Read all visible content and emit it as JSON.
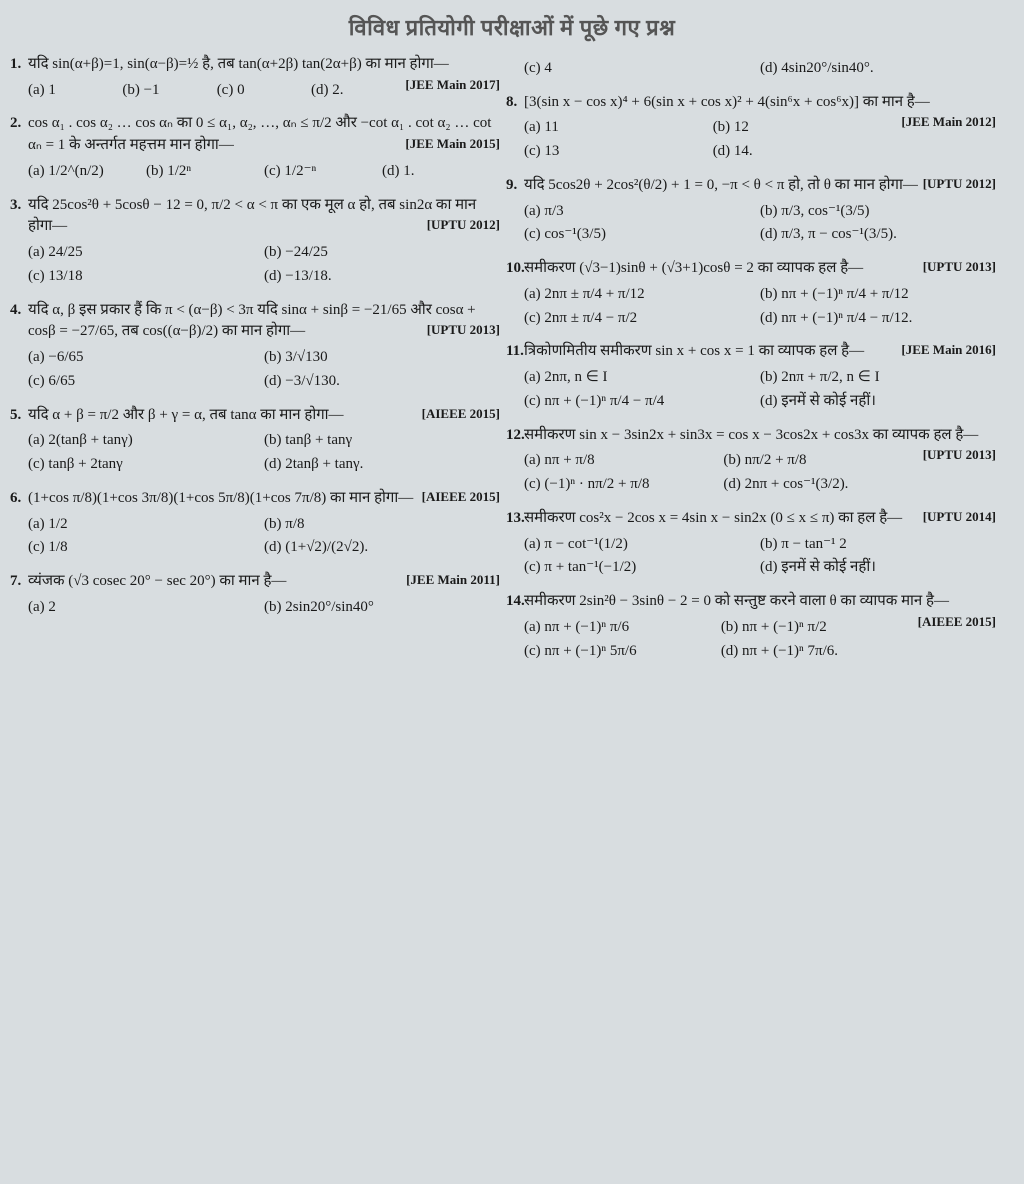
{
  "title": "विविध प्रतियोगी परीक्षाओं में पूछे गए प्रश्न",
  "left": {
    "q1": {
      "text": "यदि sin(α+β)=1, sin(α−β)=½ है, तब tan(α+2β) tan(2α+β) का मान होगा—",
      "tag": "[JEE Main 2017]",
      "a": "(a) 1",
      "b": "(b) −1",
      "c": "(c) 0",
      "d": "(d) 2."
    },
    "q2": {
      "text": "cos α₁ . cos α₂ … cos αₙ का 0 ≤ α₁, α₂, …, αₙ ≤ π/2 और −cot α₁ . cot α₂ … cot αₙ = 1 के अन्तर्गत महत्तम मान होगा—",
      "tag": "[JEE Main 2015]",
      "a": "(a) 1/2^(n/2)",
      "b": "(b) 1/2ⁿ",
      "c": "(c) 1/2⁻ⁿ",
      "d": "(d) 1."
    },
    "q3": {
      "text": "यदि 25cos²θ + 5cosθ − 12 = 0, π/2 < α < π का एक मूल α हो, तब sin2α का मान होगा—",
      "tag": "[UPTU 2012]",
      "a": "(a) 24/25",
      "b": "(b) −24/25",
      "c": "(c) 13/18",
      "d": "(d) −13/18."
    },
    "q4": {
      "text": "यदि α, β इस प्रकार हैं कि π < (α−β) < 3π यदि sinα + sinβ = −21/65 और cosα + cosβ = −27/65, तब cos((α−β)/2) का मान होगा—",
      "tag": "[UPTU 2013]",
      "a": "(a) −6/65",
      "b": "(b) 3/√130",
      "c": "(c) 6/65",
      "d": "(d) −3/√130."
    },
    "q5": {
      "text": "यदि α + β = π/2 और β + γ = α, तब tanα का मान होगा—",
      "tag": "[AIEEE 2015]",
      "a": "(a) 2(tanβ + tanγ)",
      "b": "(b) tanβ + tanγ",
      "c": "(c) tanβ + 2tanγ",
      "d": "(d) 2tanβ + tanγ."
    },
    "q6": {
      "text": "(1+cos π/8)(1+cos 3π/8)(1+cos 5π/8)(1+cos 7π/8) का मान होगा—",
      "tag": "[AIEEE 2015]",
      "a": "(a) 1/2",
      "b": "(b) π/8",
      "c": "(c) 1/8",
      "d": "(d) (1+√2)/(2√2)."
    },
    "q7": {
      "text": "व्यंजक (√3 cosec 20° − sec 20°) का मान है—",
      "tag": "[JEE Main 2011]",
      "a": "(a) 2",
      "b": "(b) 2sin20°/sin40°"
    }
  },
  "right": {
    "q7r": {
      "c": "(c) 4",
      "d": "(d) 4sin20°/sin40°."
    },
    "q8": {
      "text": "[3(sin x − cos x)⁴ + 6(sin x + cos x)² + 4(sin⁶x + cos⁶x)] का मान है—",
      "tag": "[JEE Main 2012]",
      "a": "(a) 11",
      "b": "(b) 12",
      "c": "(c) 13",
      "d": "(d) 14."
    },
    "q9": {
      "text": "यदि 5cos2θ + 2cos²(θ/2) + 1 = 0, −π < θ < π हो, तो θ का मान होगा—",
      "tag": "[UPTU 2012]",
      "a": "(a) π/3",
      "b": "(b) π/3, cos⁻¹(3/5)",
      "c": "(c) cos⁻¹(3/5)",
      "d": "(d) π/3, π − cos⁻¹(3/5)."
    },
    "q10": {
      "text": "समीकरण (√3−1)sinθ + (√3+1)cosθ = 2 का व्यापक हल है—",
      "tag": "[UPTU 2013]",
      "a": "(a) 2nπ ± π/4 + π/12",
      "b": "(b) nπ + (−1)ⁿ π/4 + π/12",
      "c": "(c) 2nπ ± π/4 − π/2",
      "d": "(d) nπ + (−1)ⁿ π/4 − π/12."
    },
    "q11": {
      "text": "त्रिकोणमितीय समीकरण sin x + cos x = 1 का व्यापक हल है—",
      "tag": "[JEE Main 2016]",
      "a": "(a) 2nπ, n ∈ I",
      "b": "(b) 2nπ + π/2, n ∈ I",
      "c": "(c) nπ + (−1)ⁿ π/4 − π/4",
      "d": "(d) इनमें से कोई नहीं।"
    },
    "q12": {
      "text": "समीकरण sin x − 3sin2x + sin3x = cos x − 3cos2x + cos3x का व्यापक हल है—",
      "tag": "[UPTU 2013]",
      "a": "(a) nπ + π/8",
      "b": "(b) nπ/2 + π/8",
      "c": "(c) (−1)ⁿ · nπ/2 + π/8",
      "d": "(d) 2nπ + cos⁻¹(3/2)."
    },
    "q13": {
      "text": "समीकरण cos²x − 2cos x = 4sin x − sin2x (0 ≤ x ≤ π) का हल है—",
      "tag": "[UPTU 2014]",
      "a": "(a) π − cot⁻¹(1/2)",
      "b": "(b) π − tan⁻¹ 2",
      "c": "(c) π + tan⁻¹(−1/2)",
      "d": "(d) इनमें से कोई नहीं।"
    },
    "q14": {
      "text": "समीकरण 2sin²θ − 3sinθ − 2 = 0 को सन्तुष्ट करने वाला θ का व्यापक मान है—",
      "tag": "[AIEEE 2015]",
      "a": "(a) nπ + (−1)ⁿ π/6",
      "b": "(b) nπ + (−1)ⁿ π/2",
      "c": "(c) nπ + (−1)ⁿ 5π/6",
      "d": "(d) nπ + (−1)ⁿ 7π/6."
    }
  }
}
